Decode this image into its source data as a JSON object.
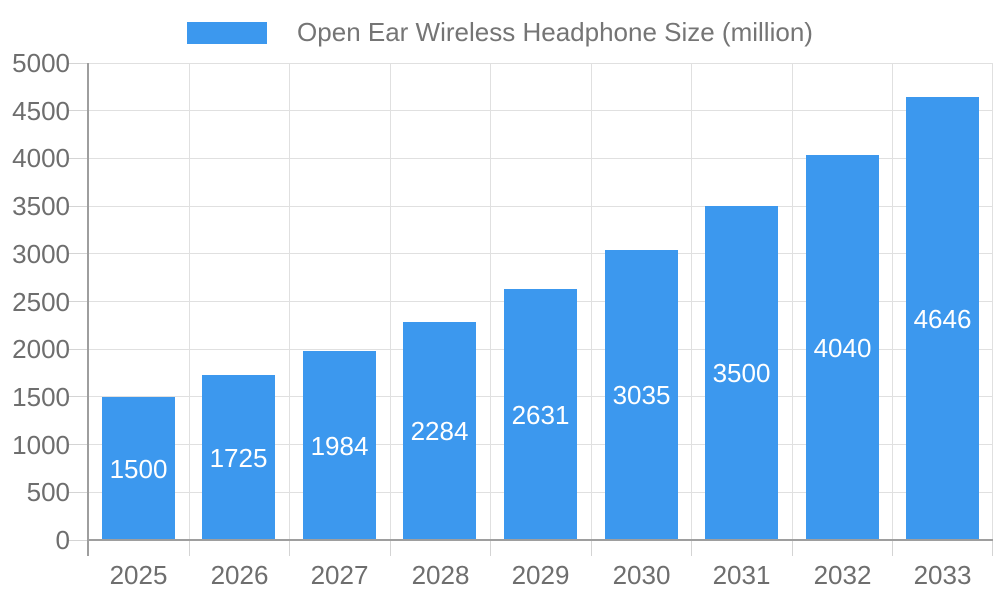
{
  "theme": {
    "bar": "#3C98EE",
    "value_label": "#FFFFFF",
    "axis": "#9E9E9E",
    "grid": "#E0E0E0",
    "tick": "#D4D4D4",
    "tick_label": "#6E6E6E",
    "legend_label": "#757575",
    "background": "#FFFFFF"
  },
  "legend": {
    "position": "top",
    "items": [
      {
        "label": "Open Ear Wireless Headphone Size (million)",
        "swatch_color": "#3C98EE"
      }
    ]
  },
  "chart_data": {
    "type": "bar",
    "title": "Open Ear Wireless Headphone Size (million)",
    "categories": [
      "2025",
      "2026",
      "2027",
      "2028",
      "2029",
      "2030",
      "2031",
      "2032",
      "2033"
    ],
    "values": [
      1500,
      1725,
      1984,
      2284,
      2631,
      3035,
      3500,
      4040,
      4646
    ],
    "series": [
      {
        "name": "Open Ear Wireless Headphone Size (million)",
        "values": [
          1500,
          1725,
          1984,
          2284,
          2631,
          3035,
          3500,
          4040,
          4646
        ]
      }
    ],
    "xlabel": "",
    "ylabel": "",
    "ylim": [
      0,
      5000
    ],
    "ytick_interval": 500,
    "yticks": [
      0,
      500,
      1000,
      1500,
      2000,
      2500,
      3000,
      3500,
      4000,
      4500,
      5000
    ],
    "grid": {
      "horizontal": true,
      "vertical": true
    },
    "legend_position": "top",
    "value_labels": {
      "show": true,
      "position": "inside-center"
    }
  }
}
